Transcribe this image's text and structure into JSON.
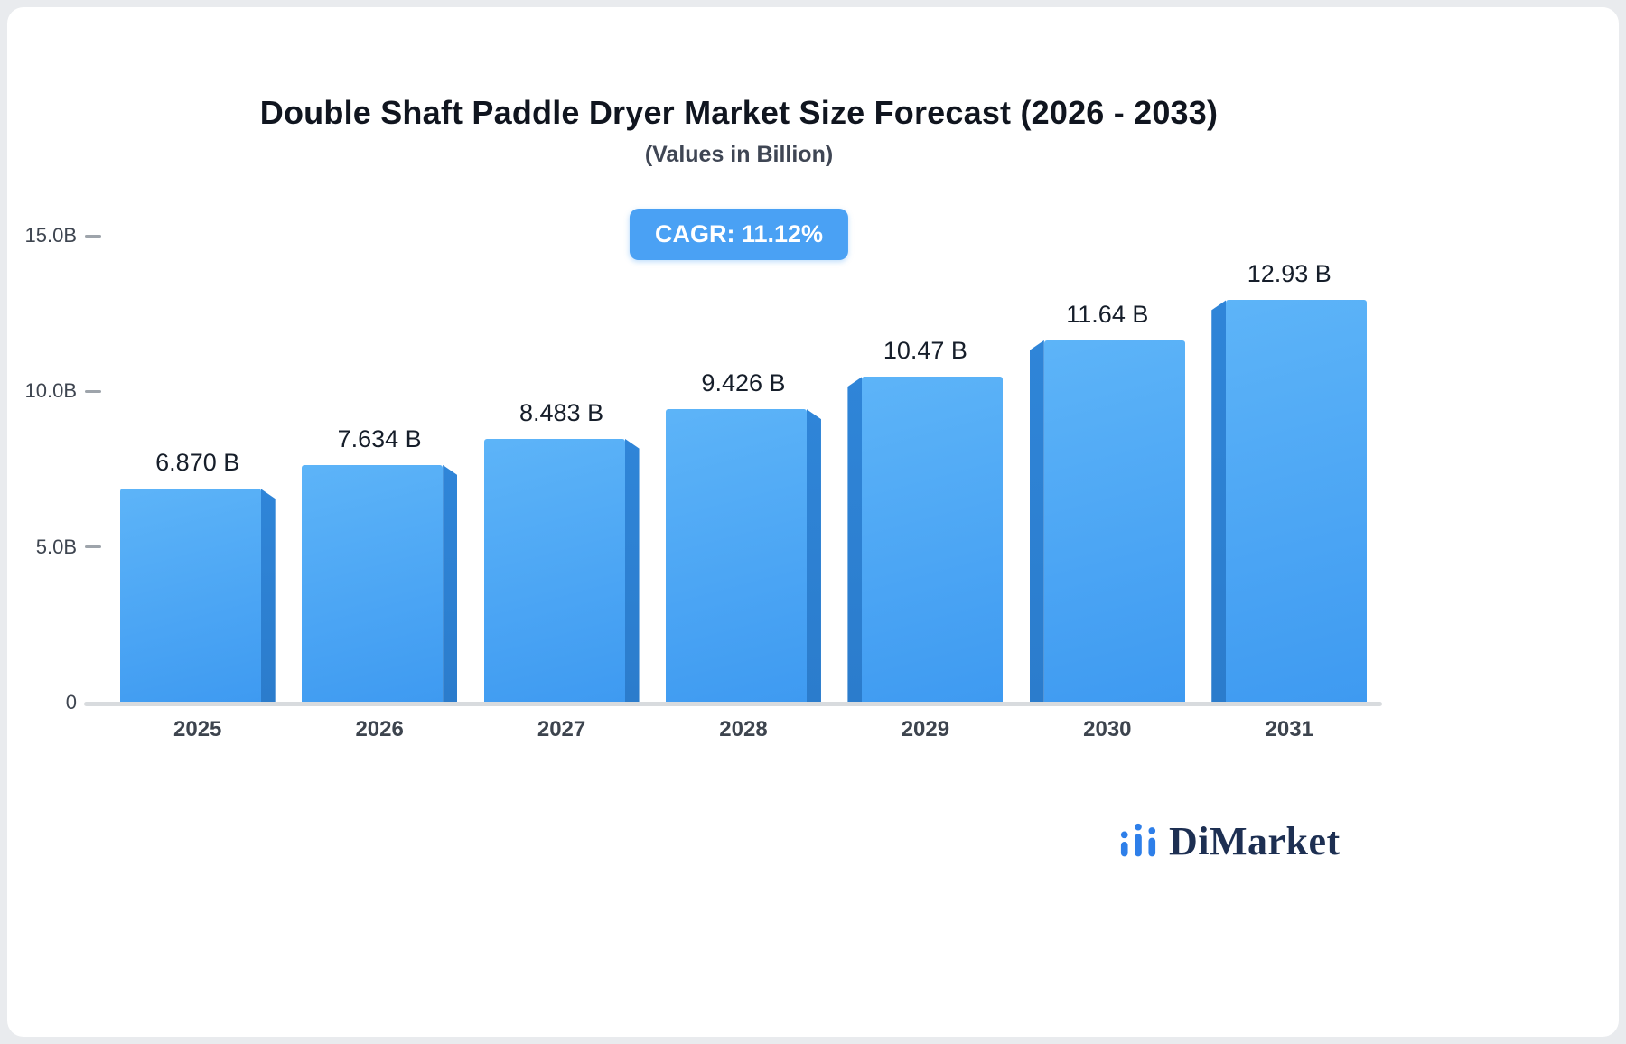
{
  "chart_data": {
    "type": "bar",
    "title": "Double Shaft Paddle Dryer Market Size Forecast (2026 - 2033)",
    "subtitle": "(Values in Billion)",
    "annotations": {
      "cagr": "CAGR: 11.12%"
    },
    "categories": [
      "2025",
      "2026",
      "2027",
      "2028",
      "2029",
      "2030",
      "2031"
    ],
    "values": [
      6.87,
      7.634,
      8.483,
      9.426,
      10.47,
      11.64,
      12.93
    ],
    "value_labels": [
      "6.870 B",
      "7.634 B",
      "8.483 B",
      "9.426 B",
      "10.47 B",
      "11.64 B",
      "12.93 B"
    ],
    "ylim": [
      0,
      15
    ],
    "yticks": [
      {
        "label": "15.0B",
        "value": 15
      },
      {
        "label": "10.0B",
        "value": 10
      },
      {
        "label": "5.0B",
        "value": 5
      },
      {
        "label": "0",
        "value": 0
      }
    ],
    "xlabel": "",
    "ylabel": "",
    "grid": false,
    "legend": false,
    "colors": {
      "bar_face_top": "#5db4f8",
      "bar_face_bottom": "#3e9af1",
      "bar_side": "#2b7ccc",
      "badge_bg": "#4aa1f4",
      "badge_text": "#ffffff",
      "axis_line": "#d8dbde",
      "title_text": "#10151f",
      "label_text": "#161e2a",
      "tick_text": "#3e4550"
    }
  },
  "branding": {
    "logo_text": "DiMarket",
    "logo_icon": "bar-chart-icon",
    "logo_color": "#1d2f52",
    "icon_color": "#2e7fe9"
  }
}
